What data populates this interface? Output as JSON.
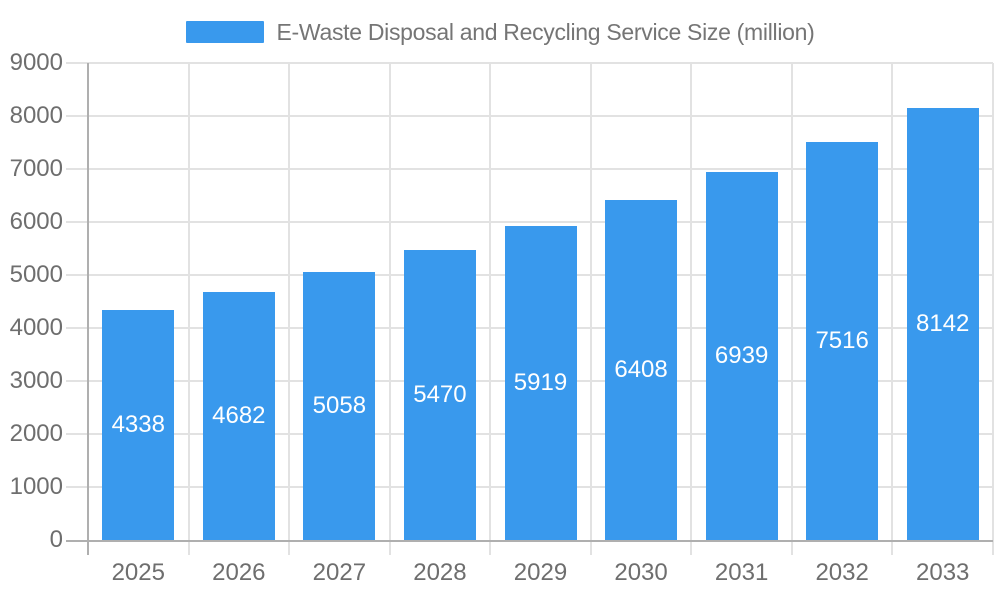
{
  "legend": {
    "label": "E-Waste Disposal and Recycling Service Size (million)"
  },
  "chart_data": {
    "type": "bar",
    "title": "E-Waste Disposal and Recycling Service Size (million)",
    "categories": [
      "2025",
      "2026",
      "2027",
      "2028",
      "2029",
      "2030",
      "2031",
      "2032",
      "2033"
    ],
    "series": [
      {
        "name": "E-Waste Disposal and Recycling Service Size (million)",
        "values": [
          4338,
          4682,
          5058,
          5470,
          5919,
          6408,
          6939,
          7516,
          8142
        ]
      }
    ],
    "ylim": [
      0,
      9000
    ],
    "ytick_step": 1000,
    "ytick_labels": [
      "0",
      "1000",
      "2000",
      "3000",
      "4000",
      "5000",
      "6000",
      "7000",
      "8000",
      "9000"
    ],
    "xlabel": "",
    "ylabel": "",
    "grid": true,
    "legend_position": "top-center",
    "bar_label_position": "inside-center",
    "colors": {
      "bar": "#3999ED",
      "bar_label": "#FFFFFF",
      "grid_line": "#E2E2E2",
      "axis_line": "#AFAFAF",
      "axis_label": "#6E6E6E",
      "title_text": "#757575",
      "background": "#FFFFFF"
    }
  }
}
